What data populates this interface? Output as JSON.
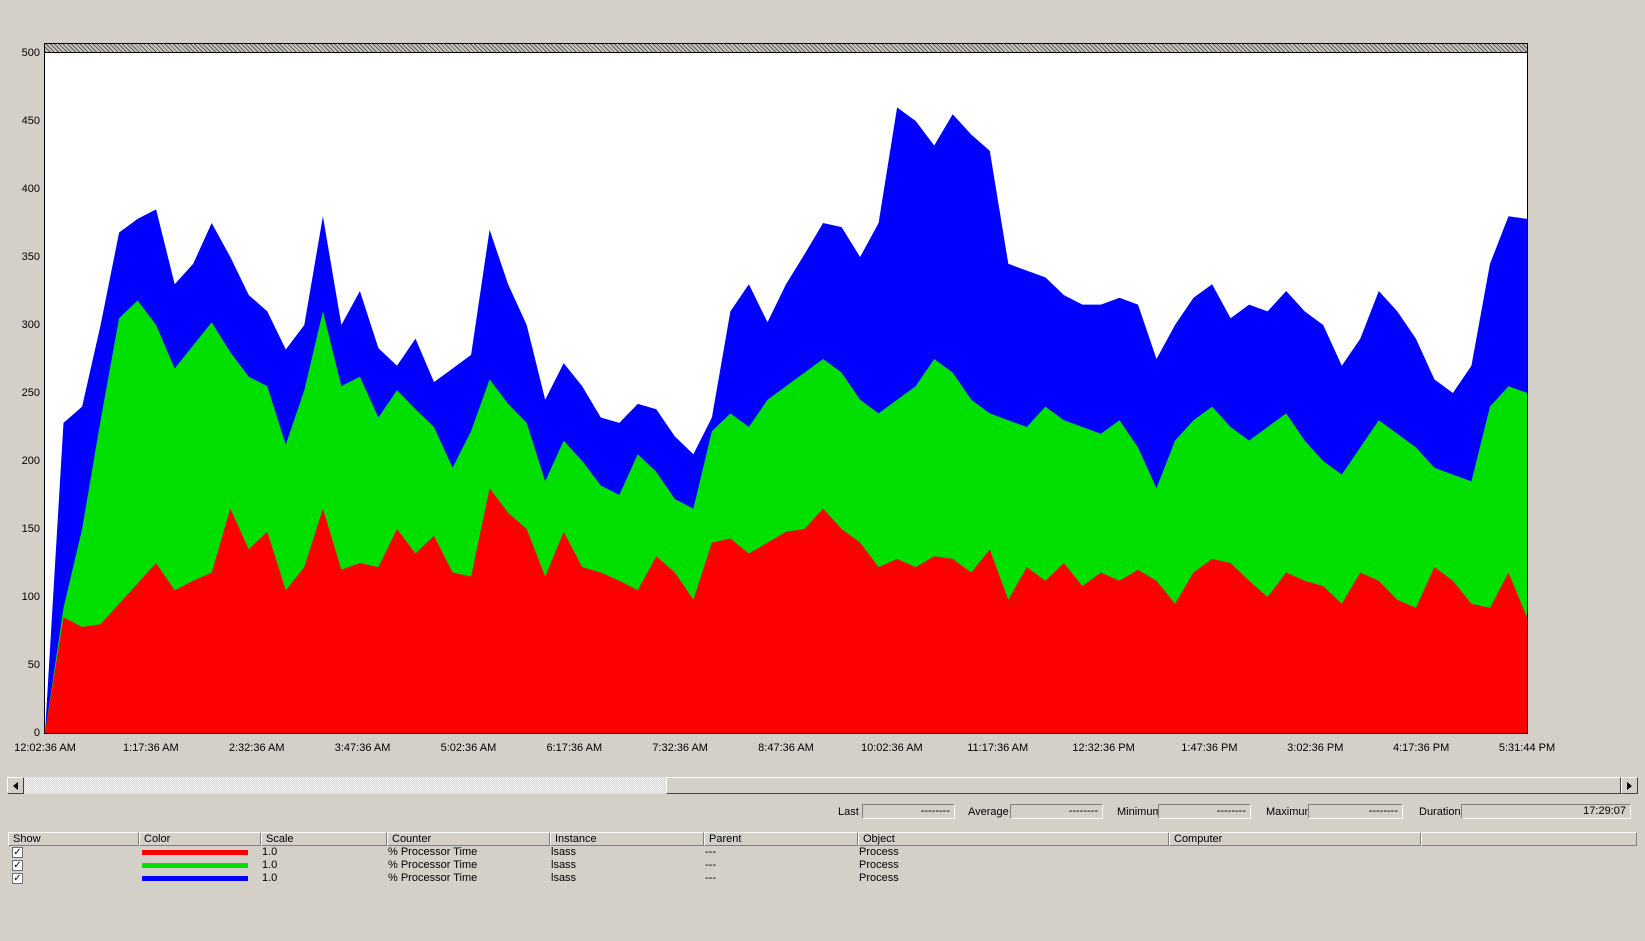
{
  "window": {
    "bg_color": "#d4d0c8"
  },
  "chart_data": {
    "type": "area",
    "stacked": true,
    "representation": "cumulative_upper_boundaries",
    "ylim": [
      0,
      500
    ],
    "yticks": [
      0,
      50,
      100,
      150,
      200,
      250,
      300,
      350,
      400,
      450,
      500
    ],
    "xticklabels": [
      "12:02:36 AM",
      "1:17:36 AM",
      "2:32:36 AM",
      "3:47:36 AM",
      "5:02:36 AM",
      "6:17:36 AM",
      "7:32:36 AM",
      "8:47:36 AM",
      "10:02:36 AM",
      "11:17:36 AM",
      "12:32:36 PM",
      "1:47:36 PM",
      "3:02:36 PM",
      "4:17:36 PM",
      "5:31:44 PM"
    ],
    "grid": false,
    "legend_position": "bottom-table",
    "series": [
      {
        "name": "red-processor-time-lsass",
        "color": "#ff0000",
        "top_values": [
          0,
          85,
          78,
          80,
          95,
          110,
          125,
          105,
          112,
          118,
          165,
          135,
          148,
          105,
          122,
          165,
          120,
          125,
          122,
          150,
          132,
          145,
          118,
          115,
          180,
          162,
          150,
          115,
          148,
          122,
          118,
          112,
          105,
          130,
          118,
          98,
          140,
          143,
          132,
          140,
          148,
          150,
          165,
          150,
          140,
          122,
          128,
          122,
          130,
          128,
          118,
          135,
          98,
          122,
          112,
          125,
          108,
          118,
          112,
          120,
          112,
          95,
          118,
          128,
          125,
          112,
          100,
          118,
          112,
          108,
          95,
          118,
          112,
          98,
          92,
          122,
          112,
          95,
          92,
          118,
          85
        ]
      },
      {
        "name": "green-processor-time-lsass",
        "color": "#00e000",
        "top_values": [
          0,
          92,
          150,
          230,
          305,
          318,
          300,
          268,
          285,
          302,
          280,
          262,
          255,
          212,
          252,
          310,
          255,
          262,
          232,
          252,
          238,
          225,
          195,
          222,
          260,
          242,
          228,
          185,
          215,
          200,
          182,
          175,
          205,
          192,
          172,
          165,
          222,
          235,
          225,
          245,
          255,
          265,
          275,
          265,
          245,
          235,
          245,
          255,
          275,
          265,
          245,
          235,
          230,
          225,
          240,
          230,
          225,
          220,
          230,
          210,
          180,
          215,
          230,
          240,
          225,
          215,
          225,
          235,
          215,
          200,
          190,
          210,
          230,
          220,
          210,
          195,
          190,
          185,
          240,
          255,
          250
        ]
      },
      {
        "name": "blue-processor-time-lsass",
        "color": "#0000ff",
        "top_values": [
          0,
          228,
          240,
          300,
          368,
          378,
          385,
          330,
          345,
          375,
          350,
          322,
          310,
          282,
          300,
          380,
          300,
          325,
          283,
          270,
          290,
          258,
          268,
          278,
          370,
          330,
          300,
          245,
          272,
          255,
          232,
          228,
          242,
          238,
          218,
          205,
          232,
          310,
          330,
          302,
          330,
          352,
          375,
          372,
          350,
          375,
          460,
          450,
          432,
          455,
          440,
          428,
          345,
          340,
          335,
          322,
          315,
          315,
          320,
          315,
          275,
          300,
          320,
          330,
          305,
          315,
          310,
          325,
          310,
          300,
          270,
          290,
          325,
          310,
          290,
          260,
          250,
          270,
          345,
          380,
          378
        ]
      }
    ]
  },
  "value_bar": {
    "items": [
      {
        "label": "Last",
        "value": "--------"
      },
      {
        "label": "Average",
        "value": "--------"
      },
      {
        "label": "Minimum",
        "value": "--------"
      },
      {
        "label": "Maximum",
        "value": "--------"
      },
      {
        "label": "Duration",
        "value": "17:29:07"
      }
    ]
  },
  "legend": {
    "headers": [
      "Show",
      "Color",
      "Scale",
      "Counter",
      "Instance",
      "Parent",
      "Object",
      "Computer",
      ""
    ],
    "rows": [
      {
        "show": true,
        "color": "#ff0000",
        "scale": "1.0",
        "counter": "% Processor Time",
        "instance": "lsass",
        "parent": "---",
        "object": "Process",
        "computer": ""
      },
      {
        "show": true,
        "color": "#00e000",
        "scale": "1.0",
        "counter": "% Processor Time",
        "instance": "lsass",
        "parent": "---",
        "object": "Process",
        "computer": ""
      },
      {
        "show": true,
        "color": "#0000ff",
        "scale": "1.0",
        "counter": "% Processor Time",
        "instance": "lsass",
        "parent": "---",
        "object": "Process",
        "computer": ""
      }
    ]
  }
}
